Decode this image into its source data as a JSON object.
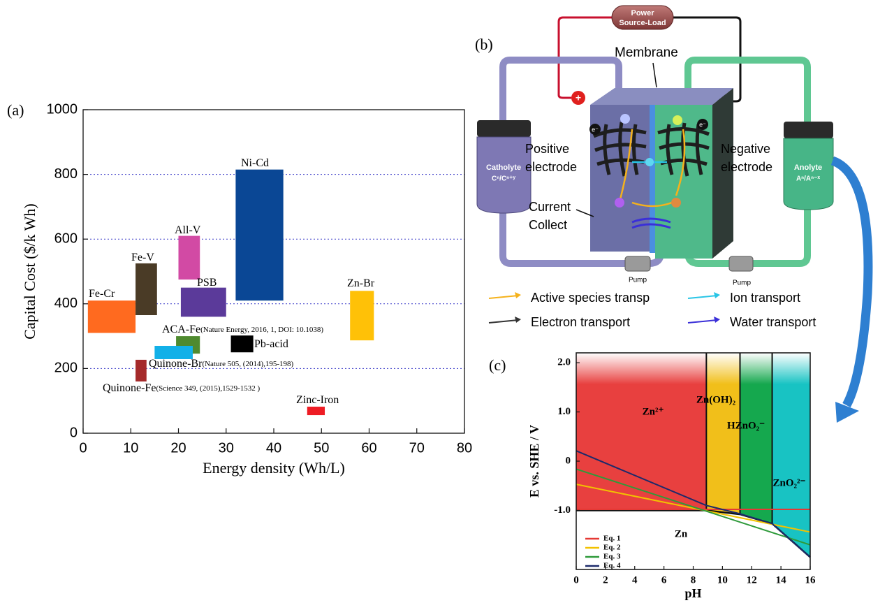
{
  "chart_data": [
    {
      "type": "range",
      "panel": "(a)",
      "xlabel": "Energy density (Wh/L)",
      "ylabel": "Capital Cost ($/k Wh)",
      "xlim": [
        0,
        80
      ],
      "ylim": [
        0,
        1000
      ],
      "xticks": [
        0,
        10,
        20,
        30,
        40,
        50,
        60,
        70,
        80
      ],
      "yticks": [
        0,
        200,
        400,
        600,
        800,
        1000
      ],
      "grid": true,
      "series": [
        {
          "name": "Fe-Cr",
          "color": "#ff6a1f",
          "x": [
            1,
            11
          ],
          "y": [
            310,
            410
          ]
        },
        {
          "name": "Fe-V",
          "color": "#4a3b26",
          "x": [
            11,
            15.5
          ],
          "y": [
            365,
            525
          ]
        },
        {
          "name": "All-V",
          "color": "#d24aa4",
          "x": [
            20,
            24.5
          ],
          "y": [
            475,
            610
          ]
        },
        {
          "name": "PSB",
          "color": "#5b3a9a",
          "x": [
            20.5,
            30
          ],
          "y": [
            360,
            450
          ]
        },
        {
          "name": "Ni-Cd",
          "color": "#0a4795",
          "x": [
            32,
            42
          ],
          "y": [
            410,
            815
          ]
        },
        {
          "name": "Zn-Br",
          "color": "#ffc107",
          "x": [
            56,
            61
          ],
          "y": [
            287,
            440
          ]
        },
        {
          "name": "ACA-Fe",
          "note": "(Nature Energy, 2016, 1, DOI: 10.1038)",
          "color": "#4f8a2f",
          "x": [
            19.5,
            24.5
          ],
          "y": [
            246,
            300
          ]
        },
        {
          "name": "Quinone-Br",
          "note": "(Nature 505, (2014),195-198)",
          "color": "#12b0e8",
          "x": [
            15,
            23
          ],
          "y": [
            229,
            270
          ]
        },
        {
          "name": "Pb-acid",
          "color": "#000000",
          "x": [
            31,
            35.7
          ],
          "y": [
            250,
            302
          ]
        },
        {
          "name": "Quinone-Fe",
          "note": "(Science 349, (2015),1529-1532 )",
          "color": "#a52a2a",
          "x": [
            11,
            13.3
          ],
          "y": [
            160,
            227
          ]
        },
        {
          "name": "Zinc-Iron",
          "color": "#ee1c24",
          "x": [
            47,
            50.7
          ],
          "y": [
            56,
            82
          ]
        }
      ]
    },
    {
      "type": "line",
      "panel": "(c)",
      "xlabel": "pH",
      "ylabel": "E vs. SHE / V",
      "xlim": [
        0,
        16
      ],
      "ylim": [
        -2.2,
        2.2
      ],
      "xticks": [
        0,
        2,
        4,
        6,
        8,
        10,
        12,
        14,
        16
      ],
      "yticks": [
        {
          "value": 2,
          "label": "2.0"
        },
        {
          "value": 1,
          "label": "1.0"
        },
        0,
        {
          "value": -1,
          "label": "-1.0"
        }
      ],
      "grid": false,
      "regions": [
        {
          "name": "Zn²⁺",
          "color": "#e8403f",
          "x": [
            0,
            8.9
          ]
        },
        {
          "name": "Zn(OH)₂",
          "color": "#f1bf1a",
          "x": [
            8.9,
            11.2
          ]
        },
        {
          "name": "HZnO₂⁻",
          "color": "#15a84e",
          "x": [
            11.2,
            13.4
          ]
        },
        {
          "name": "ZnO₂²⁻",
          "color": "#18c3c3",
          "x": [
            13.4,
            16
          ]
        }
      ],
      "below_label": "Zn",
      "boundary": {
        "x": [
          0,
          8.9,
          11.2,
          13.4,
          16
        ],
        "y": [
          -1.0,
          -1.0,
          -1.08,
          -1.27,
          -1.95
        ]
      },
      "series": [
        {
          "name": "Eq. 1",
          "color": "#e53935",
          "x": [
            0,
            16
          ],
          "values": [
            -0.98,
            -0.98
          ]
        },
        {
          "name": "Eq. 2",
          "color": "#f2c200",
          "x": [
            0,
            16
          ],
          "values": [
            -0.47,
            -1.44
          ]
        },
        {
          "name": "Eq. 3",
          "color": "#2e9a3a",
          "x": [
            0,
            16
          ],
          "values": [
            -0.16,
            -1.7
          ]
        },
        {
          "name": "Eq. 4",
          "color": "#1c2a6b",
          "x": [
            0,
            8.9,
            11.2,
            13.4,
            16
          ],
          "values": [
            0.21,
            -0.9,
            -1.07,
            -1.27,
            -1.95
          ]
        }
      ]
    }
  ],
  "diagram": {
    "label": "(b)",
    "power_source": [
      "Power",
      "Source-Load"
    ],
    "membrane": "Membrane",
    "positive_electrode": [
      "Positive",
      "electrode"
    ],
    "negative_electrode": [
      "Negative",
      "electrode"
    ],
    "current_collector": [
      "Current",
      "Collect"
    ],
    "catholyte": {
      "name": "Catholyte",
      "formula": "Cⁿ/Cⁿ⁺ʸ"
    },
    "anolyte": {
      "name": "Anolyte",
      "formula": "Aⁿ/Aⁿ⁻ˣ"
    },
    "electron": "e⁻",
    "pumps": [
      "Pump",
      "Pump"
    ],
    "legend": [
      {
        "name": "Active species transp",
        "color": "#f5b21c"
      },
      {
        "name": "Ion transport",
        "color": "#29c5e6"
      },
      {
        "name": "Electron transport",
        "color": "#333333"
      },
      {
        "name": "Water transport",
        "color": "#3a2fd8"
      }
    ]
  }
}
